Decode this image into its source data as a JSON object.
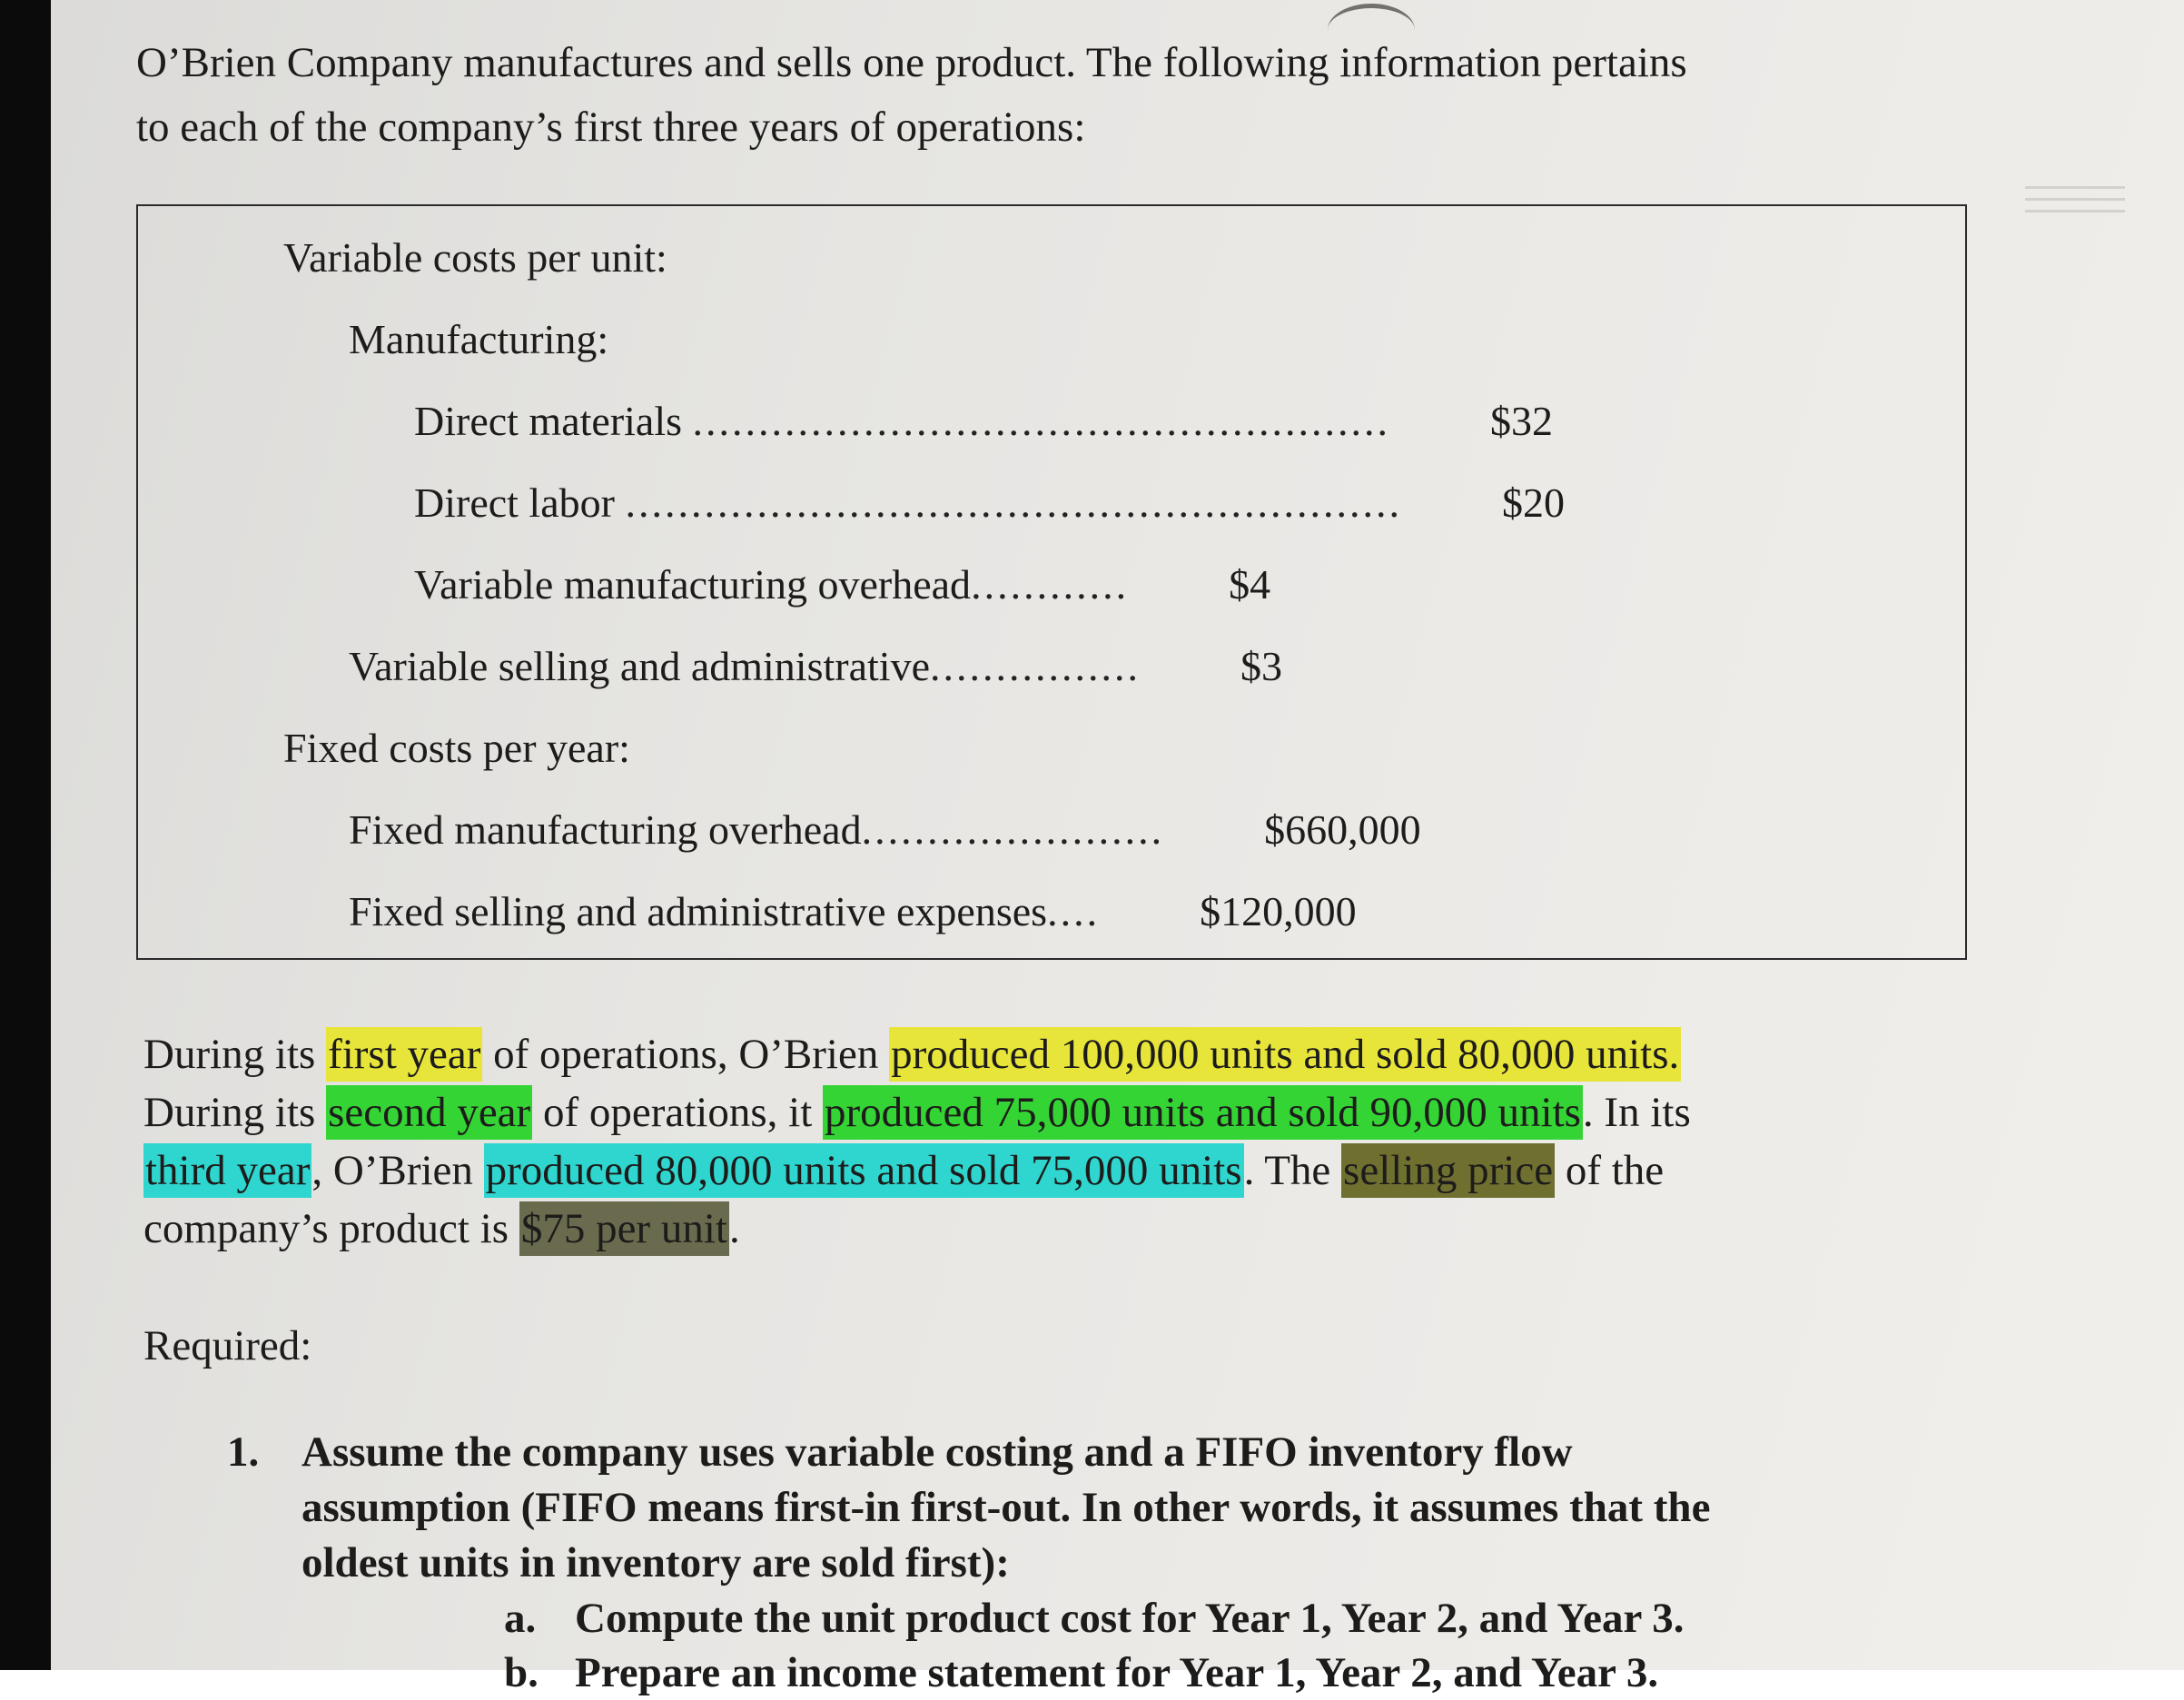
{
  "intro": {
    "text": "O’Brien Company manufactures and sells one product. The following information pertains\nto each of the company’s first three years of operations:"
  },
  "cost_table": {
    "rows": [
      {
        "indent": 0,
        "label": "Variable costs per unit:",
        "dots": "",
        "value": ""
      },
      {
        "indent": 1,
        "label": "Manufacturing:",
        "dots": "",
        "value": ""
      },
      {
        "indent": 2,
        "label": "Direct materials ",
        "dots": ".....................................................",
        "value": "$32"
      },
      {
        "indent": 2,
        "label": "Direct labor ",
        "dots": "...........................................................",
        "value": "$20"
      },
      {
        "indent": 2,
        "label": "Variable manufacturing overhead",
        "dots": "............",
        "value": "$4"
      },
      {
        "indent": 1,
        "label": "Variable selling and administrative",
        "dots": "................",
        "value": "$3"
      },
      {
        "indent": 0,
        "label": "Fixed costs per year:",
        "dots": "",
        "value": ""
      },
      {
        "indent": 1,
        "label": "Fixed manufacturing overhead",
        "dots": ".......................",
        "value": "$660,000"
      },
      {
        "indent": 1,
        "label": "Fixed selling and administrative expenses",
        "dots": "....",
        "value": "$120,000"
      }
    ]
  },
  "story": {
    "segments": [
      {
        "text": "During its ",
        "hl": "none"
      },
      {
        "text": "first year",
        "hl": "yellow"
      },
      {
        "text": " of operations, O’Brien ",
        "hl": "none"
      },
      {
        "text": "produced 100,000 units and sold 80,000 units.",
        "hl": "yellow"
      },
      {
        "text": "\nDuring its ",
        "hl": "none"
      },
      {
        "text": "second year",
        "hl": "green"
      },
      {
        "text": " of operations, it ",
        "hl": "none"
      },
      {
        "text": "produced 75,000 units and sold 90,000 units",
        "hl": "green"
      },
      {
        "text": ". In its\n",
        "hl": "none"
      },
      {
        "text": "third year",
        "hl": "cyan"
      },
      {
        "text": ", O’Brien ",
        "hl": "none"
      },
      {
        "text": "produced 80,000 units and sold 75,000 units",
        "hl": "cyan"
      },
      {
        "text": ". The ",
        "hl": "none"
      },
      {
        "text": "selling price",
        "hl": "olive"
      },
      {
        "text": " of the\ncompany’s product is ",
        "hl": "none"
      },
      {
        "text": "$75 per unit",
        "hl": "grayolive"
      },
      {
        "text": ".",
        "hl": "none"
      }
    ]
  },
  "required": {
    "label": "Required:",
    "items": [
      {
        "number": "1.",
        "text": "Assume the company uses variable costing and a FIFO inventory flow\nassumption (FIFO means first-in first-out. In other words, it assumes that the\noldest units in inventory are sold first):",
        "subitems": [
          {
            "letter": "a.",
            "text": "Compute the unit product cost for Year 1, Year 2, and Year 3."
          },
          {
            "letter": "b.",
            "text": "Prepare an income statement for Year 1, Year 2, and Year 3."
          }
        ]
      }
    ]
  },
  "highlight_colors": {
    "yellow": "#e8e53a",
    "green": "#35d435",
    "cyan": "#2fd6cf",
    "olive": "#6f7030",
    "grayolive": "#6a6b4e"
  }
}
